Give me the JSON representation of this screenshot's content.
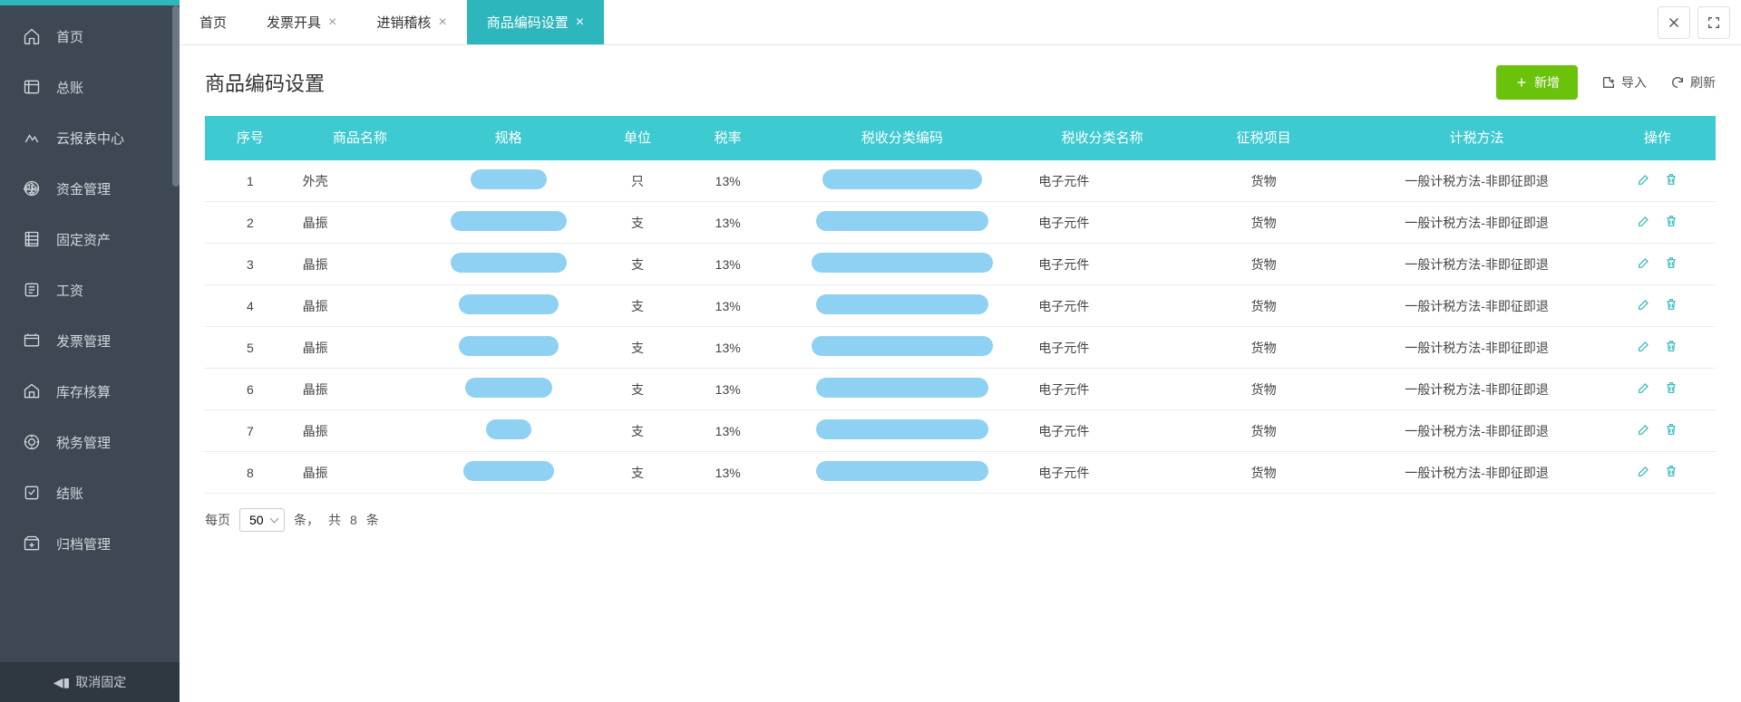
{
  "colors": {
    "sidebar_bg": "#3d4854",
    "accent": "#2db7bd",
    "primary_btn": "#6ac20b",
    "table_header_bg": "#3ecad1",
    "redact_bg": "#8fd1f3"
  },
  "sidebar": {
    "items": [
      {
        "label": "首页"
      },
      {
        "label": "总账"
      },
      {
        "label": "云报表中心"
      },
      {
        "label": "资金管理"
      },
      {
        "label": "固定资产"
      },
      {
        "label": "工资"
      },
      {
        "label": "发票管理"
      },
      {
        "label": "库存核算"
      },
      {
        "label": "税务管理"
      },
      {
        "label": "结账"
      },
      {
        "label": "归档管理"
      }
    ],
    "footer_label": "取消固定"
  },
  "tabs": [
    {
      "label": "首页",
      "closable": false,
      "active": false
    },
    {
      "label": "发票开具",
      "closable": true,
      "active": false
    },
    {
      "label": "进销稽核",
      "closable": true,
      "active": false
    },
    {
      "label": "商品编码设置",
      "closable": true,
      "active": true
    }
  ],
  "page": {
    "title": "商品编码设置",
    "add_label": "新增",
    "import_label": "导入",
    "refresh_label": "刷新"
  },
  "table": {
    "columns": {
      "seq": "序号",
      "name": "商品名称",
      "spec": "规格",
      "unit": "单位",
      "rate": "税率",
      "taxcode": "税收分类编码",
      "taxname": "税收分类名称",
      "taxitem": "征税项目",
      "method": "计税方法",
      "ops": "操作"
    },
    "rows": [
      {
        "seq": "1",
        "name": "外壳",
        "spec_redact_w": 84,
        "unit": "只",
        "rate": "13%",
        "taxcode_redact_w": 176,
        "taxname": "电子元件",
        "taxitem": "货物",
        "method": "一般计税方法-非即征即退"
      },
      {
        "seq": "2",
        "name": "晶振",
        "spec_redact_w": 128,
        "unit": "支",
        "rate": "13%",
        "taxcode_redact_w": 190,
        "taxname": "电子元件",
        "taxitem": "货物",
        "method": "一般计税方法-非即征即退"
      },
      {
        "seq": "3",
        "name": "晶振",
        "spec_redact_w": 128,
        "unit": "支",
        "rate": "13%",
        "taxcode_redact_w": 200,
        "taxname": "电子元件",
        "taxitem": "货物",
        "method": "一般计税方法-非即征即退"
      },
      {
        "seq": "4",
        "name": "晶振",
        "spec_redact_w": 110,
        "unit": "支",
        "rate": "13%",
        "taxcode_redact_w": 190,
        "taxname": "电子元件",
        "taxitem": "货物",
        "method": "一般计税方法-非即征即退"
      },
      {
        "seq": "5",
        "name": "晶振",
        "spec_redact_w": 110,
        "unit": "支",
        "rate": "13%",
        "taxcode_redact_w": 200,
        "taxname": "电子元件",
        "taxitem": "货物",
        "method": "一般计税方法-非即征即退"
      },
      {
        "seq": "6",
        "name": "晶振",
        "spec_redact_w": 96,
        "unit": "支",
        "rate": "13%",
        "taxcode_redact_w": 190,
        "taxname": "电子元件",
        "taxitem": "货物",
        "method": "一般计税方法-非即征即退"
      },
      {
        "seq": "7",
        "name": "晶振",
        "spec_redact_w": 50,
        "unit": "支",
        "rate": "13%",
        "taxcode_redact_w": 190,
        "taxname": "电子元件",
        "taxitem": "货物",
        "method": "一般计税方法-非即征即退"
      },
      {
        "seq": "8",
        "name": "晶振",
        "spec_redact_w": 100,
        "unit": "支",
        "rate": "13%",
        "taxcode_redact_w": 190,
        "taxname": "电子元件",
        "taxitem": "货物",
        "method": "一般计税方法-非即征即退"
      }
    ]
  },
  "pagination": {
    "per_page_label": "每页",
    "per_page_value": "50",
    "suffix_unit": "条，",
    "total_prefix": "共",
    "total_count": "8",
    "total_suffix": "条"
  }
}
